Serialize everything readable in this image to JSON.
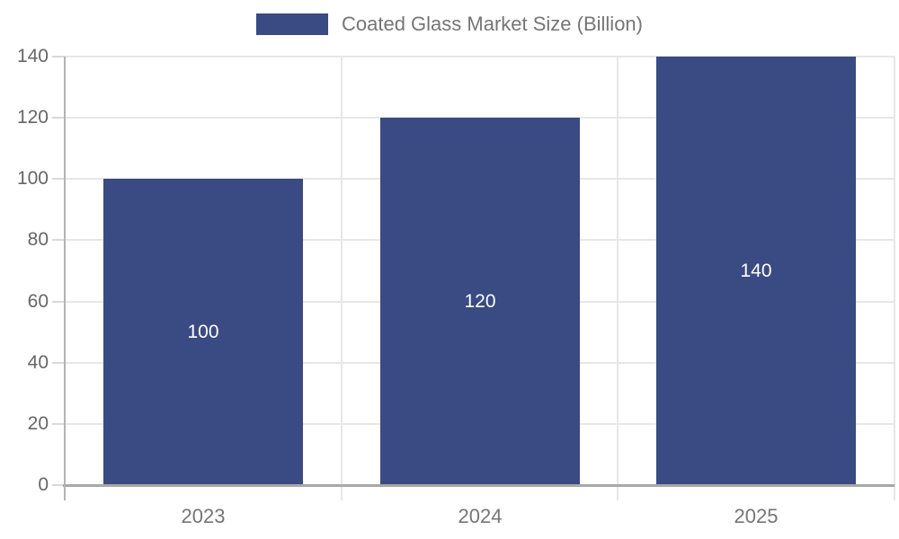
{
  "chart_data": {
    "type": "bar",
    "title": "Coated Glass Market Size (Billion)",
    "categories": [
      "2023",
      "2024",
      "2025"
    ],
    "series": [
      {
        "name": "Coated Glass Market Size (Billion)",
        "values": [
          100,
          120,
          140
        ]
      }
    ],
    "bar_labels": [
      "100",
      "120",
      "140"
    ],
    "xlabel": "",
    "ylabel": "",
    "ylim": [
      0,
      140
    ],
    "yticks": [
      0,
      20,
      40,
      60,
      80,
      100,
      120,
      140
    ],
    "grid": true,
    "legend_position": "top",
    "colors": {
      "bar": "#3a4a83",
      "grid": "#e7e7e7",
      "axis_x": "#a8a8a8",
      "axis_y": "#b3b3b3",
      "tick_stub": "#d9d9d9",
      "ytick_label": "#666666",
      "xtick_label": "#757575",
      "bar_label": "#ffffff",
      "legend_text": "#757575",
      "background": "#ffffff"
    }
  }
}
